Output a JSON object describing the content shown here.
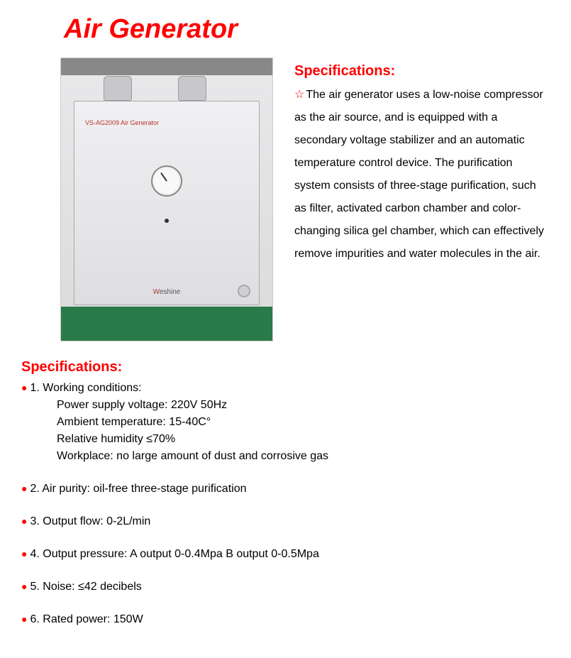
{
  "title": "Air Generator",
  "colors": {
    "accent": "#ff0000",
    "text": "#000000",
    "background": "#ffffff"
  },
  "product_image": {
    "device_model_label": "VS-AG2009  Air Generator",
    "brand_prefix": "W",
    "brand_rest": "eshine",
    "has_gauge": true,
    "vent_count": 2
  },
  "right_panel": {
    "heading": "Specifications:",
    "star": "☆",
    "description": "The air generator uses a low-noise compressor as the air source, and is equipped with a secondary voltage stabilizer and an automatic temperature control device. The purification system consists of three-stage purification, such as filter, activated carbon chamber and color-changing silica gel chamber, which can effectively remove impurities and water molecules in the air."
  },
  "bottom_panel": {
    "heading": "Specifications:",
    "bullet": "●",
    "items": [
      {
        "title": "1. Working conditions:",
        "sub": [
          "Power supply voltage: 220V 50Hz",
          "Ambient temperature: 15-40C°",
          "Relative humidity  ≤70%",
          "Workplace: no large amount of dust and corrosive gas"
        ]
      },
      {
        "title": "2. Air purity: oil-free three-stage purification",
        "sub": []
      },
      {
        "title": "3. Output flow: 0-2L/min",
        "sub": []
      },
      {
        "title": "4. Output pressure: A output 0-0.4Mpa B output 0-0.5Mpa",
        "sub": []
      },
      {
        "title": "5. Noise: ≤42 decibels",
        "sub": []
      },
      {
        "title": "6. Rated power: 150W",
        "sub": []
      }
    ]
  }
}
